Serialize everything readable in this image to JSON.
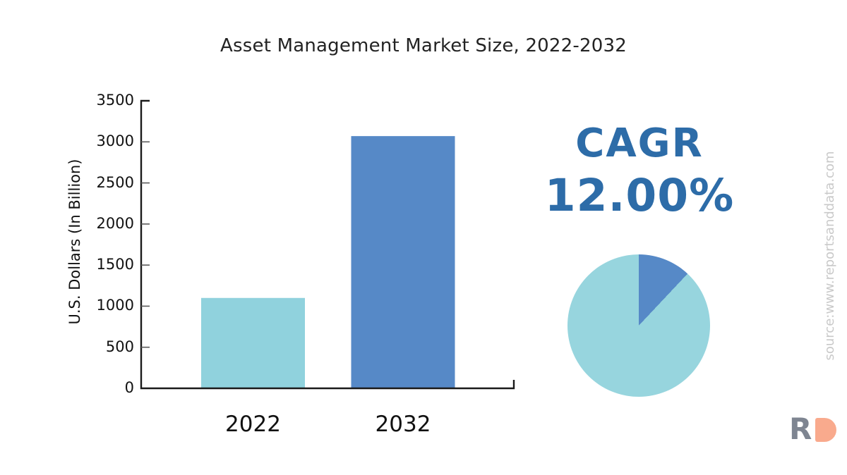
{
  "title": "Asset Management Market Size, 2022-2032",
  "chart_data": [
    {
      "type": "bar",
      "title": "Asset Management Market Size, 2022-2032",
      "categories": [
        "2022",
        "2032"
      ],
      "values": [
        1100,
        3070
      ],
      "xlabel": "",
      "ylabel": "U.S. Dollars (In Billion)",
      "ylim": [
        0,
        3500
      ],
      "ytick_step": 500,
      "grid": false,
      "legend": "none",
      "bar_colors": [
        "#90d2dd",
        "#5689c7"
      ],
      "axis_color": "#1a1a1a"
    },
    {
      "type": "pie",
      "labels": [
        "CAGR share",
        "remainder"
      ],
      "values": [
        12,
        88
      ],
      "colors": [
        "#5689c7",
        "#97d5de"
      ],
      "start_angle_deg": 0,
      "direction": "clockwise",
      "legend": "none"
    }
  ],
  "cagr": {
    "label": "CAGR",
    "value": "12.00%",
    "color": "#2d6ca8"
  },
  "source": {
    "text": "source:www.reportsanddata.com"
  },
  "logo": {
    "letter": "R",
    "r_color": "#7e8591",
    "d_color": "#f9aa8d"
  }
}
